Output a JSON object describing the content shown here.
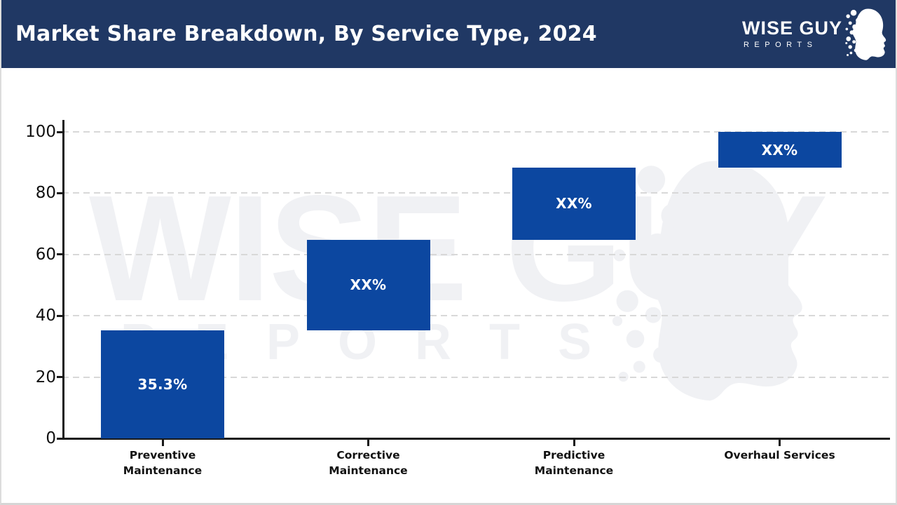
{
  "header": {
    "title": "Market Share Breakdown, By Service Type, 2024",
    "bg_color": "#203864",
    "logo": {
      "wordmark": "WISE GUY",
      "subtext": "REPORTS"
    }
  },
  "watermark": {
    "wordmark": "WISE GUY",
    "subtext": "REPORTS"
  },
  "chart_data": {
    "type": "bar",
    "subtype": "waterfall",
    "title": "Market Share Breakdown, By Service Type, 2024",
    "xlabel": "",
    "ylabel": "",
    "ylim": [
      0,
      100
    ],
    "yticks": [
      0,
      20,
      40,
      60,
      80,
      100
    ],
    "grid": "horizontal-dashed",
    "legend": "none",
    "categories": [
      "Preventive\nMaintenance",
      "Corrective\nMaintenance",
      "Predictive\nMaintenance",
      "Overhaul Services"
    ],
    "segments": [
      {
        "category": "Preventive Maintenance",
        "start": 0,
        "end": 35.3,
        "label": "35.3%"
      },
      {
        "category": "Corrective Maintenance",
        "start": 35.3,
        "end": 64.8,
        "label": "XX%"
      },
      {
        "category": "Predictive Maintenance",
        "start": 64.8,
        "end": 88.3,
        "label": "XX%"
      },
      {
        "category": "Overhaul Services",
        "start": 88.3,
        "end": 100,
        "label": "XX%"
      }
    ],
    "colors": {
      "bar": "#0C47A0",
      "grid": "#D8D8D8",
      "axis": "#1A1A1A",
      "value_label": "#FFFFFF",
      "tick_label": "#111111",
      "watermark": "#F0F1F4"
    }
  }
}
